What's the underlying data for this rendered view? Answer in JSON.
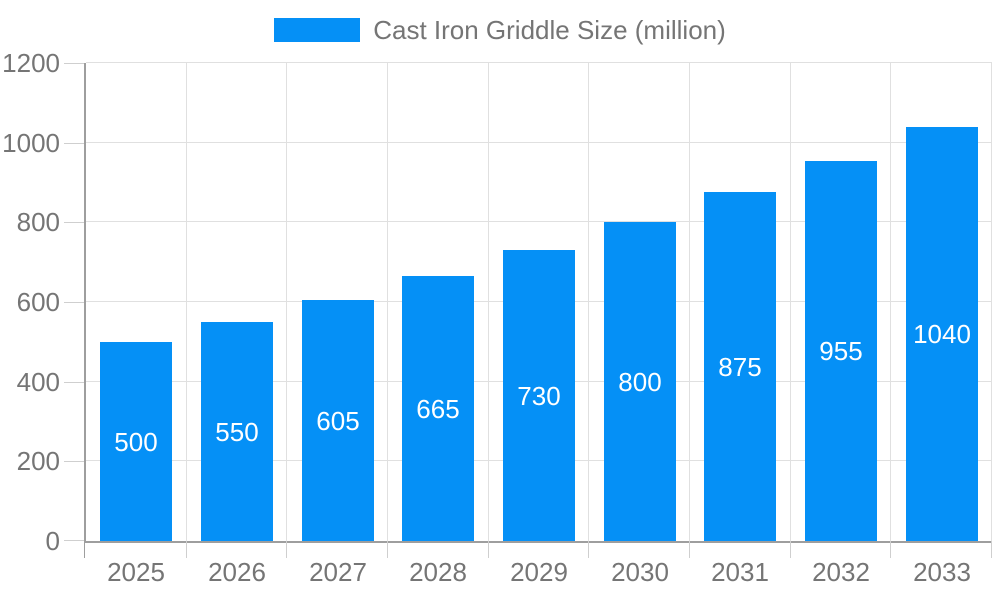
{
  "chart_data": {
    "type": "bar",
    "title": "Cast Iron Griddle Size (million)",
    "categories": [
      "2025",
      "2026",
      "2027",
      "2028",
      "2029",
      "2030",
      "2031",
      "2032",
      "2033"
    ],
    "values": [
      500,
      550,
      605,
      665,
      730,
      800,
      875,
      955,
      1040
    ],
    "xlabel": "",
    "ylabel": "",
    "ylim": [
      0,
      1200
    ],
    "yticks": [
      0,
      200,
      400,
      600,
      800,
      1000,
      1200
    ],
    "grid": true,
    "legend_position": "top",
    "legend_entries": [
      "Cast Iron Griddle Size (million)"
    ],
    "value_labels_shown": true
  },
  "colors": {
    "bar": "#0590F6",
    "grid": "#e0e0e0",
    "axis": "#9e9e9e",
    "tick": "#cfcfcf",
    "text": "#757575",
    "value_label": "#ffffff",
    "background": "#ffffff"
  }
}
